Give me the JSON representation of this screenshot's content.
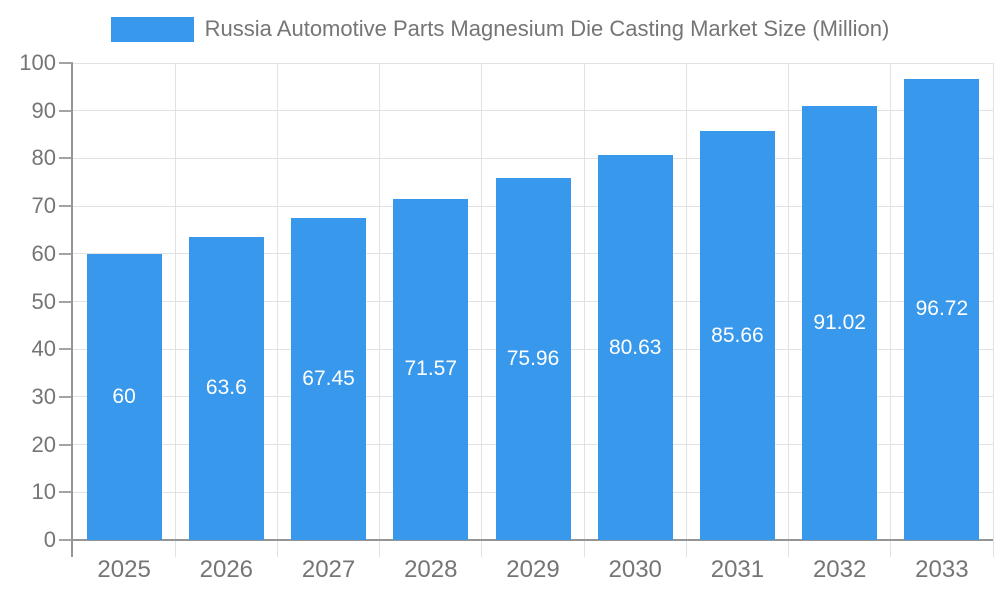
{
  "chart_data": {
    "type": "bar",
    "title": "Russia Automotive Parts Magnesium Die Casting Market Size (Million)",
    "legend": {
      "position": "top",
      "label": "Russia Automotive Parts Magnesium Die Casting Market Size (Million)"
    },
    "categories": [
      "2025",
      "2026",
      "2027",
      "2028",
      "2029",
      "2030",
      "2031",
      "2032",
      "2033"
    ],
    "series": [
      {
        "name": "Russia Automotive Parts Magnesium Die Casting Market Size (Million)",
        "values": [
          60,
          63.6,
          67.45,
          71.57,
          75.96,
          80.63,
          85.66,
          91.02,
          96.72
        ],
        "value_labels": [
          "60",
          "63.6",
          "67.45",
          "71.57",
          "75.96",
          "80.63",
          "85.66",
          "91.02",
          "96.72"
        ]
      }
    ],
    "xlabel": "",
    "ylabel": "",
    "ylim": [
      0,
      100
    ],
    "ytick_step": 10,
    "ytick_labels": [
      "0",
      "10",
      "20",
      "30",
      "40",
      "50",
      "60",
      "70",
      "80",
      "90",
      "100"
    ],
    "grid": true,
    "colors": {
      "bar": "#3898ec",
      "gridline": "#e2e2e2",
      "axis_line": "#959595",
      "tick": "#a3a3a3",
      "label_text": "#757575",
      "value_label_text": "#ffffff",
      "background": "#ffffff"
    }
  }
}
